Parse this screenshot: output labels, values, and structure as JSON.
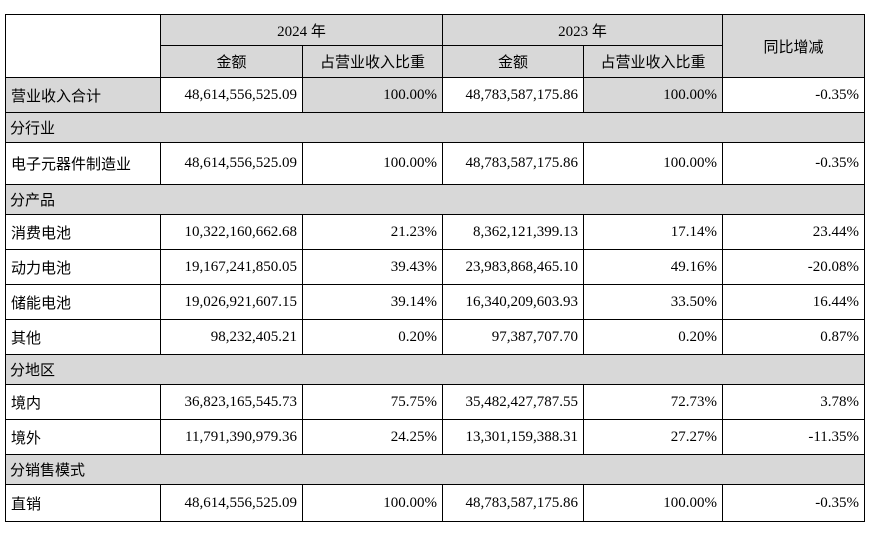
{
  "table": {
    "groups": {
      "year_2024": "2024 年",
      "year_2023": "2023 年",
      "yoy": "同比增减"
    },
    "columns": {
      "amount": "金额",
      "ratio": "占营业收入比重"
    },
    "colors": {
      "header_bg": "#d8d8d8",
      "section_bg": "#d8d8d8",
      "border": "#000000",
      "text": "#000000"
    },
    "rows": [
      {
        "type": "data",
        "highlight": true,
        "label": "营业收入合计",
        "amount_2024": "48,614,556,525.09",
        "ratio_2024": "100.00%",
        "amount_2023": "48,783,587,175.86",
        "ratio_2023": "100.00%",
        "yoy": "-0.35%"
      },
      {
        "type": "section",
        "label": "分行业"
      },
      {
        "type": "data",
        "label": "电子元器件制造业",
        "amount_2024": "48,614,556,525.09",
        "ratio_2024": "100.00%",
        "amount_2023": "48,783,587,175.86",
        "ratio_2023": "100.00%",
        "yoy": "-0.35%"
      },
      {
        "type": "section",
        "label": "分产品"
      },
      {
        "type": "data",
        "label": "消费电池",
        "amount_2024": "10,322,160,662.68",
        "ratio_2024": "21.23%",
        "amount_2023": "8,362,121,399.13",
        "ratio_2023": "17.14%",
        "yoy": "23.44%"
      },
      {
        "type": "data",
        "label": "动力电池",
        "amount_2024": "19,167,241,850.05",
        "ratio_2024": "39.43%",
        "amount_2023": "23,983,868,465.10",
        "ratio_2023": "49.16%",
        "yoy": "-20.08%"
      },
      {
        "type": "data",
        "label": "储能电池",
        "amount_2024": "19,026,921,607.15",
        "ratio_2024": "39.14%",
        "amount_2023": "16,340,209,603.93",
        "ratio_2023": "33.50%",
        "yoy": "16.44%"
      },
      {
        "type": "data",
        "label": "其他",
        "amount_2024": "98,232,405.21",
        "ratio_2024": "0.20%",
        "amount_2023": "97,387,707.70",
        "ratio_2023": "0.20%",
        "yoy": "0.87%"
      },
      {
        "type": "section",
        "label": "分地区"
      },
      {
        "type": "data",
        "label": "境内",
        "amount_2024": "36,823,165,545.73",
        "ratio_2024": "75.75%",
        "amount_2023": "35,482,427,787.55",
        "ratio_2023": "72.73%",
        "yoy": "3.78%"
      },
      {
        "type": "data",
        "label": "境外",
        "amount_2024": "11,791,390,979.36",
        "ratio_2024": "24.25%",
        "amount_2023": "13,301,159,388.31",
        "ratio_2023": "27.27%",
        "yoy": "-11.35%"
      },
      {
        "type": "section",
        "label": "分销售模式"
      },
      {
        "type": "data",
        "label": "直销",
        "amount_2024": "48,614,556,525.09",
        "ratio_2024": "100.00%",
        "amount_2023": "48,783,587,175.86",
        "ratio_2023": "100.00%",
        "yoy": "-0.35%"
      }
    ]
  }
}
